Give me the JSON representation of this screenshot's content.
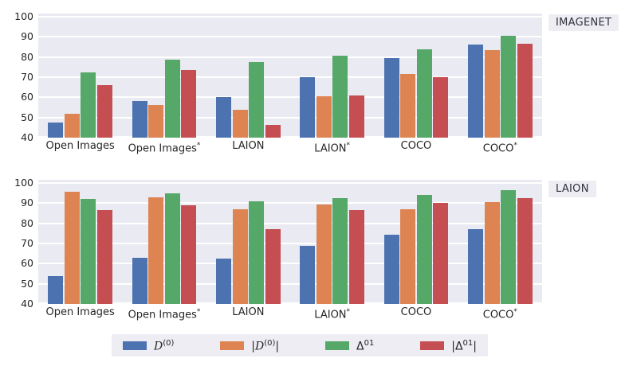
{
  "figure": {
    "background": "#ffffff",
    "plot_background": "#eaeaf2",
    "grid_color": "#ffffff",
    "text_color": "#262626",
    "label_box_background": "#ededf3"
  },
  "palette": [
    "#4C72B0",
    "#DD8452",
    "#55A868",
    "#C44E52"
  ],
  "legend": {
    "items": [
      {
        "label": "D^(0)",
        "abs": false,
        "symbol": "D",
        "italic": true,
        "sup": "(0)",
        "color": "#4C72B0"
      },
      {
        "label": "|D^(0)|",
        "abs": true,
        "symbol": "D",
        "italic": true,
        "sup": "(0)",
        "color": "#DD8452"
      },
      {
        "label": "Δ^01",
        "abs": false,
        "symbol": "Δ",
        "italic": false,
        "sup": "01",
        "color": "#55A868"
      },
      {
        "label": "|Δ^01|",
        "abs": true,
        "symbol": "Δ",
        "italic": false,
        "sup": "01",
        "color": "#C44E52"
      }
    ]
  },
  "chart_data": [
    {
      "type": "bar",
      "panel_label": "IMAGENET",
      "categories": [
        "Open Images",
        "Open Images*",
        "LAION",
        "LAION*",
        "COCO",
        "COCO*"
      ],
      "series": [
        {
          "name": "D^(0)",
          "values": [
            47.5,
            58,
            60,
            70,
            79.5,
            86
          ]
        },
        {
          "name": "|D^(0)|",
          "values": [
            52,
            56,
            54,
            60.5,
            71.5,
            83.5
          ]
        },
        {
          "name": "Δ^01",
          "values": [
            72.5,
            78.5,
            77.5,
            80.5,
            84,
            90.5
          ]
        },
        {
          "name": "|Δ^01|",
          "values": [
            66,
            73.5,
            46.5,
            61,
            70,
            86.5
          ]
        }
      ],
      "ylim": [
        40,
        100
      ],
      "yticks": [
        40,
        50,
        60,
        70,
        80,
        90,
        100
      ],
      "grid": true,
      "legend_position": "bottom"
    },
    {
      "type": "bar",
      "panel_label": "LAION",
      "categories": [
        "Open Images",
        "Open Images*",
        "LAION",
        "LAION*",
        "COCO",
        "COCO*"
      ],
      "series": [
        {
          "name": "D^(0)",
          "values": [
            54,
            63,
            62.5,
            69,
            74.5,
            77
          ]
        },
        {
          "name": "|D^(0)|",
          "values": [
            95.5,
            93,
            87,
            89.5,
            87,
            90.5
          ]
        },
        {
          "name": "Δ^01",
          "values": [
            92,
            95,
            91,
            92.5,
            94,
            96.5
          ]
        },
        {
          "name": "|Δ^01|",
          "values": [
            86.5,
            89,
            77,
            86.5,
            90,
            92.5
          ]
        }
      ],
      "ylim": [
        40,
        100
      ],
      "yticks": [
        40,
        50,
        60,
        70,
        80,
        90,
        100
      ],
      "grid": true,
      "legend_position": "bottom"
    }
  ]
}
